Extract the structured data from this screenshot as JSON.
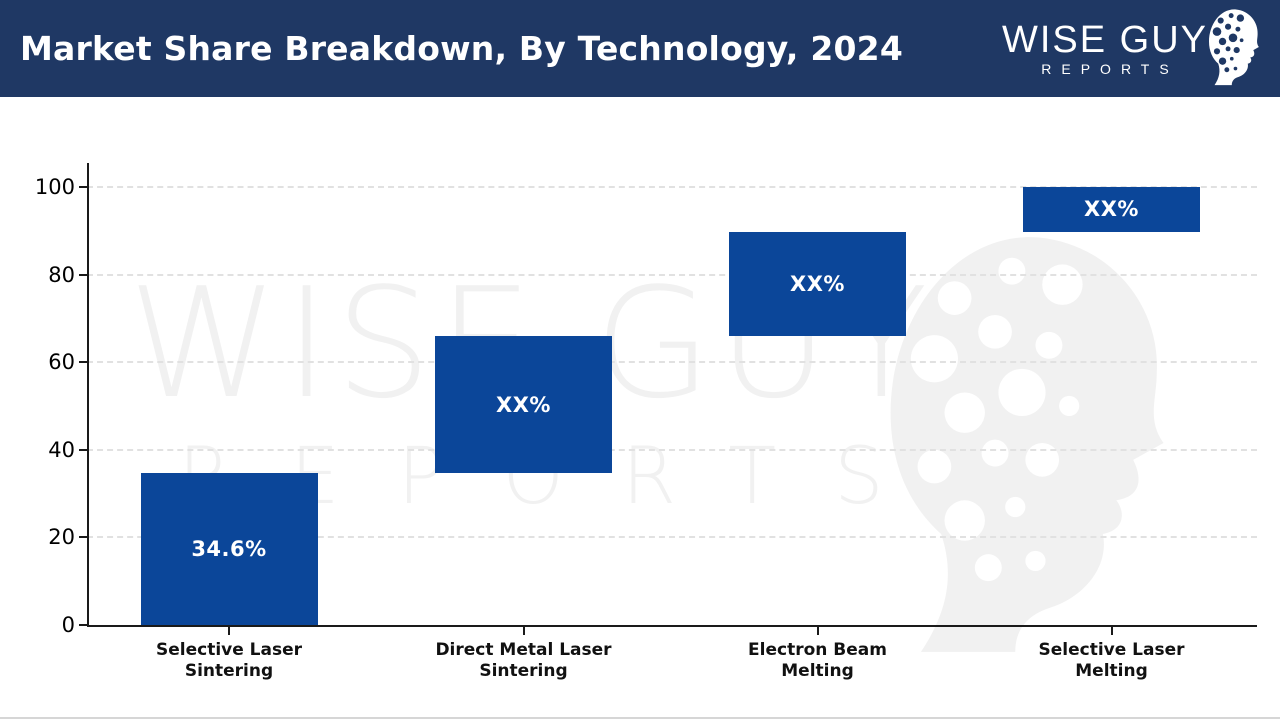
{
  "header": {
    "title": "Market Share Breakdown, By Technology, 2024",
    "logo": {
      "line1": "WISE GUY",
      "line2": "REPORTS",
      "icon": "dotted-head-profile-icon"
    }
  },
  "watermark": {
    "line1": "WISE GUY",
    "line2": "REPORTS",
    "icon": "dotted-head-profile-icon"
  },
  "colors": {
    "header_navy": "#1f3864",
    "bar_blue": "#0b4699",
    "watermark_gray": "#f1f1f1",
    "grid_gray": "#e1e1e1",
    "axis_black": "#1a1a1a"
  },
  "chart_data": {
    "type": "bar",
    "subtype": "waterfall",
    "title": "Market Share Breakdown, By Technology, 2024",
    "xlabel": "",
    "ylabel": "",
    "ylim": [
      0,
      100
    ],
    "yticks": [
      0,
      20,
      40,
      60,
      80,
      100
    ],
    "grid": "dashed-horizontal",
    "legend": "none",
    "bar_color": "#0b4699",
    "label_color": "#ffffff",
    "categories": [
      [
        "Selective Laser",
        "Sintering"
      ],
      [
        "Direct Metal Laser",
        "Sintering"
      ],
      [
        "Electron Beam",
        "Melting"
      ],
      [
        "Selective Laser",
        "Melting"
      ]
    ],
    "segments": [
      {
        "category": "Selective Laser Sintering",
        "start": 0,
        "end": 34.6,
        "value": 34.6,
        "label": "34.6%"
      },
      {
        "category": "Direct Metal Laser Sintering",
        "start": 34.6,
        "end": 66.0,
        "value": 31.4,
        "label": "XX%"
      },
      {
        "category": "Electron Beam Melting",
        "start": 66.0,
        "end": 89.8,
        "value": 23.8,
        "label": "XX%"
      },
      {
        "category": "Selective Laser Melting",
        "start": 89.8,
        "end": 100,
        "value": 10.2,
        "label": "XX%"
      }
    ]
  }
}
